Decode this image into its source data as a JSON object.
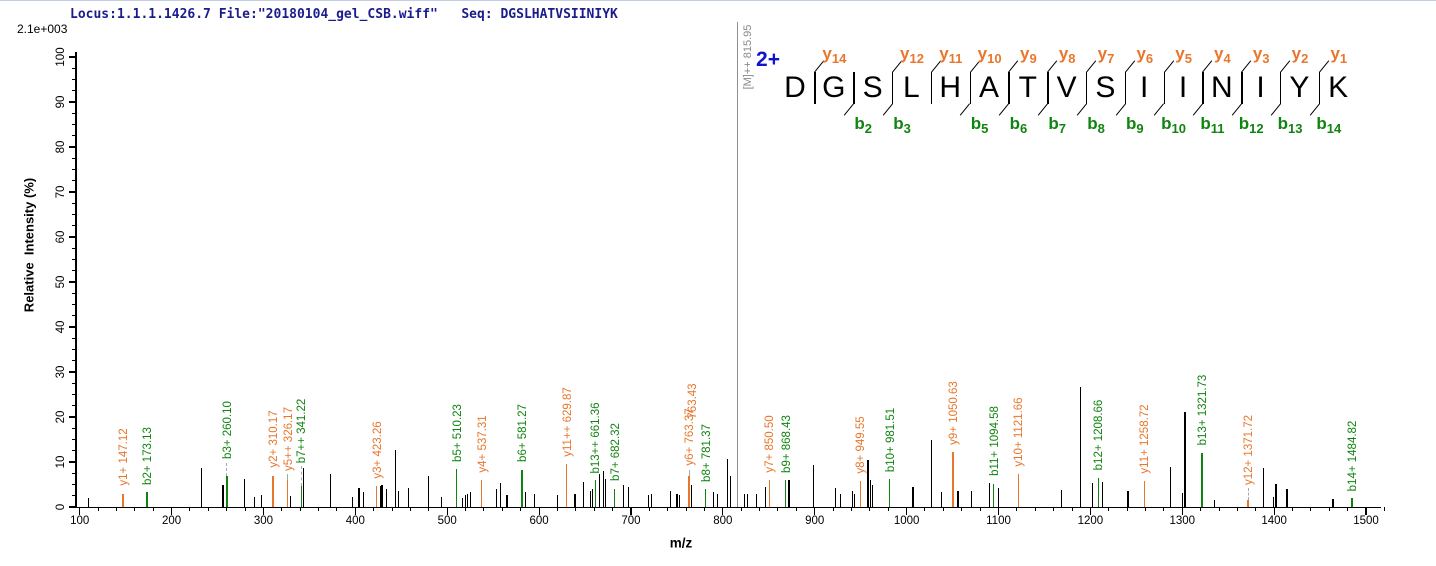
{
  "header": {
    "text": "Locus:1.1.1.1426.7 File:\"20180104_gel_CSB.wiff\"   Seq: DGSLHATVSIINIYK"
  },
  "colors": {
    "header_text": "#1b1b8e",
    "y_ion": "#e8762c",
    "b_ion": "#108410",
    "noise_peak": "#000000",
    "precursor": "#8f8f8f",
    "charge_label": "#1313cd",
    "axis": "#000000"
  },
  "chart_data": {
    "type": "bar",
    "kind": "ms2-fragment-spectrum",
    "title": "",
    "xlabel": "m/z",
    "ylabel": "Relative  Intensity (%)",
    "y_scale_note": "2.1e+003",
    "xlim": [
      100,
      1520
    ],
    "ylim": [
      0,
      100
    ],
    "x_tick_major": 100,
    "x_tick_minor": 20,
    "y_tick_major": 10,
    "y_tick_minor": 2.5,
    "grid": false,
    "precursor": {
      "label": "[M]++ 815.95",
      "mz": 815.95,
      "charge_label": "2+"
    },
    "sequence": {
      "letters": [
        "D",
        "G",
        "S",
        "L",
        "H",
        "A",
        "T",
        "V",
        "S",
        "I",
        "I",
        "N",
        "I",
        "Y",
        "K"
      ],
      "gaps": [
        {
          "y": "y14",
          "b": null
        },
        {
          "y": null,
          "b": "b2"
        },
        {
          "y": "y12",
          "b": "b3"
        },
        {
          "y": "y11",
          "b": null
        },
        {
          "y": "y10",
          "b": "b5"
        },
        {
          "y": "y9",
          "b": "b6"
        },
        {
          "y": "y8",
          "b": "b7"
        },
        {
          "y": "y7",
          "b": "b8"
        },
        {
          "y": "y6",
          "b": "b9"
        },
        {
          "y": "y5",
          "b": "b10"
        },
        {
          "y": "y4",
          "b": "b11"
        },
        {
          "y": "y3",
          "b": "b12"
        },
        {
          "y": "y2",
          "b": "b13"
        },
        {
          "y": "y1",
          "b": "b14"
        }
      ]
    },
    "labeled_peaks": [
      {
        "label": "y1+ 147.12",
        "series": "y",
        "mz": 147.12,
        "intensity": 3.0
      },
      {
        "label": "b2+ 173.13",
        "series": "b",
        "mz": 173.13,
        "intensity": 3.3
      },
      {
        "label": "b3+ 260.10",
        "series": "b",
        "mz": 260.1,
        "intensity": 7.0,
        "lift": 13
      },
      {
        "label": "y2+ 310.17",
        "series": "y",
        "mz": 310.17,
        "intensity": 7.0
      },
      {
        "label": "y5++ 326.17",
        "series": "y",
        "mz": 326.17,
        "intensity": 6.0,
        "lift": 6
      },
      {
        "label": "b7++ 341.22",
        "series": "b",
        "mz": 341.22,
        "intensity": 4.7,
        "lift": 20
      },
      {
        "label": "y3+ 423.26",
        "series": "y",
        "mz": 423.26,
        "intensity": 4.7
      },
      {
        "label": "b5+ 510.23",
        "series": "b",
        "mz": 510.23,
        "intensity": 8.5
      },
      {
        "label": "y4+ 537.31",
        "series": "y",
        "mz": 537.31,
        "intensity": 5.9
      },
      {
        "label": "b6+ 581.27",
        "series": "b",
        "mz": 581.27,
        "intensity": 8.3
      },
      {
        "label": "y11++ 629.87",
        "series": "y",
        "mz": 629.87,
        "intensity": 9.5
      },
      {
        "label": "b13++ 661.36",
        "series": "b",
        "mz": 661.36,
        "intensity": 5.9
      },
      {
        "label": "b7+ 682.32",
        "series": "b",
        "mz": 682.32,
        "intensity": 4.1
      },
      {
        "label": "y6+ 763.37",
        "series": "y",
        "mz": 763.37,
        "intensity": 7.0,
        "lift": 6,
        "ghost_label": "763.43"
      },
      {
        "label": "b8+ 781.37",
        "series": "b",
        "mz": 781.37,
        "intensity": 3.9
      },
      {
        "label": "y7+ 850.50",
        "series": "y",
        "mz": 850.5,
        "intensity": 6.0
      },
      {
        "label": "b9+ 868.43",
        "series": "b",
        "mz": 868.43,
        "intensity": 6.0
      },
      {
        "label": "y8+ 949.55",
        "series": "y",
        "mz": 949.55,
        "intensity": 5.8
      },
      {
        "label": "b10+ 981.51",
        "series": "b",
        "mz": 981.51,
        "intensity": 6.2
      },
      {
        "label": "y9+ 1050.63",
        "series": "y",
        "mz": 1050.63,
        "intensity": 12.2
      },
      {
        "label": "b11+ 1094.58",
        "series": "b",
        "mz": 1094.58,
        "intensity": 5.2
      },
      {
        "label": "y10+ 1121.66",
        "series": "y",
        "mz": 1121.66,
        "intensity": 7.3
      },
      {
        "label": "b12+ 1208.66",
        "series": "b",
        "mz": 1208.66,
        "intensity": 6.5
      },
      {
        "label": "y11+ 1258.72",
        "series": "y",
        "mz": 1258.72,
        "intensity": 5.8
      },
      {
        "label": "b13+ 1321.73",
        "series": "b",
        "mz": 1321.73,
        "intensity": 12.1
      },
      {
        "label": "y12+ 1371.72",
        "series": "y",
        "mz": 1371.72,
        "intensity": 1.6,
        "lift": 12
      },
      {
        "label": "b14+ 1484.82",
        "series": "b",
        "mz": 1484.82,
        "intensity": 2.0
      }
    ],
    "noise_peaks": [
      [
        110,
        2.1
      ],
      [
        233,
        8.7
      ],
      [
        256,
        4.8
      ],
      [
        279,
        6.2
      ],
      [
        290,
        2.3
      ],
      [
        298,
        2.7
      ],
      [
        329,
        2.4
      ],
      [
        344,
        8.7
      ],
      [
        373,
        7.3
      ],
      [
        397,
        2.2
      ],
      [
        404,
        4.3
      ],
      [
        409,
        3.4
      ],
      [
        427,
        4.7
      ],
      [
        429,
        5.0
      ],
      [
        434,
        3.9
      ],
      [
        444,
        12.6
      ],
      [
        447,
        3.6
      ],
      [
        458,
        4.3
      ],
      [
        480,
        6.8
      ],
      [
        494,
        2.2
      ],
      [
        517,
        2.0
      ],
      [
        520,
        2.6
      ],
      [
        522,
        3.0
      ],
      [
        525,
        3.3
      ],
      [
        554,
        4.1
      ],
      [
        558,
        5.3
      ],
      [
        565,
        2.6
      ],
      [
        585,
        3.3
      ],
      [
        595,
        3.0
      ],
      [
        620,
        2.6
      ],
      [
        639,
        3.0
      ],
      [
        648,
        5.6
      ],
      [
        656,
        3.6
      ],
      [
        658,
        4.1
      ],
      [
        666,
        7.4
      ],
      [
        670,
        8.1
      ],
      [
        672,
        6.3
      ],
      [
        692,
        4.8
      ],
      [
        697,
        4.4
      ],
      [
        719,
        2.6
      ],
      [
        722,
        3.0
      ],
      [
        743,
        3.6
      ],
      [
        750,
        3.0
      ],
      [
        753,
        2.7
      ],
      [
        766,
        5.0
      ],
      [
        790,
        3.3
      ],
      [
        794,
        2.8
      ],
      [
        805,
        10.6
      ],
      [
        808,
        7.0
      ],
      [
        824,
        3.0
      ],
      [
        827,
        2.8
      ],
      [
        837,
        2.8
      ],
      [
        846,
        4.5
      ],
      [
        872,
        6.1
      ],
      [
        899,
        9.3
      ],
      [
        923,
        4.3
      ],
      [
        928,
        3.0
      ],
      [
        941,
        3.5
      ],
      [
        943,
        3.0
      ],
      [
        958,
        10.4
      ],
      [
        961,
        6.0
      ],
      [
        963,
        5.0
      ],
      [
        1007,
        4.5
      ],
      [
        1027,
        15.0
      ],
      [
        1038,
        3.3
      ],
      [
        1056,
        3.5
      ],
      [
        1071,
        3.6
      ],
      [
        1090,
        5.4
      ],
      [
        1100,
        4.3
      ],
      [
        1169,
        3.8
      ],
      [
        1189,
        26.7
      ],
      [
        1202,
        5.3
      ],
      [
        1213,
        5.5
      ],
      [
        1241,
        3.6
      ],
      [
        1287,
        8.8
      ],
      [
        1300,
        3.2
      ],
      [
        1303,
        21.2
      ],
      [
        1335,
        1.5
      ],
      [
        1388,
        8.7
      ],
      [
        1399,
        2.2
      ],
      [
        1402,
        5.2
      ],
      [
        1414,
        4.1
      ],
      [
        1464,
        1.7
      ]
    ]
  }
}
